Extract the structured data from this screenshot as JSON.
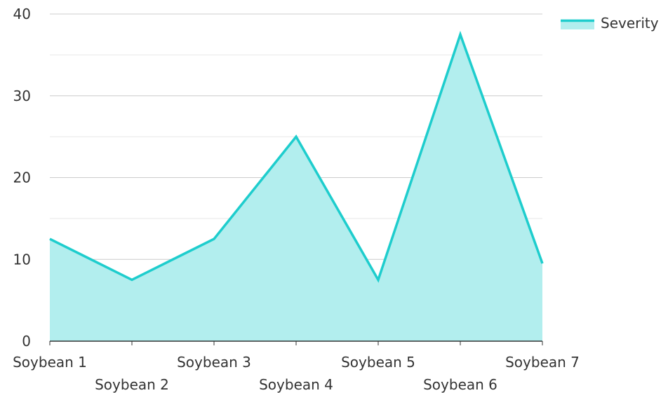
{
  "chart_data": {
    "type": "area",
    "categories": [
      "Soybean 1",
      "Soybean 2",
      "Soybean 3",
      "Soybean 4",
      "Soybean 5",
      "Soybean 6",
      "Soybean 7"
    ],
    "series": [
      {
        "name": "Severity",
        "values": [
          12.5,
          7.5,
          12.5,
          25,
          7.5,
          37.5,
          9.5
        ]
      }
    ],
    "ylim": [
      0,
      40
    ],
    "yticks": [
      0,
      10,
      20,
      30,
      40
    ],
    "minor_gridlines": [
      5,
      15,
      25,
      35
    ],
    "grid": true,
    "legend_position": "top-right",
    "title": "",
    "xlabel": "",
    "ylabel": "",
    "colors": {
      "line": "#1ecdcd",
      "fill": "#b2eeee",
      "major_grid": "#cccccc",
      "minor_grid": "#e8e8e8",
      "axis": "#333333"
    }
  }
}
